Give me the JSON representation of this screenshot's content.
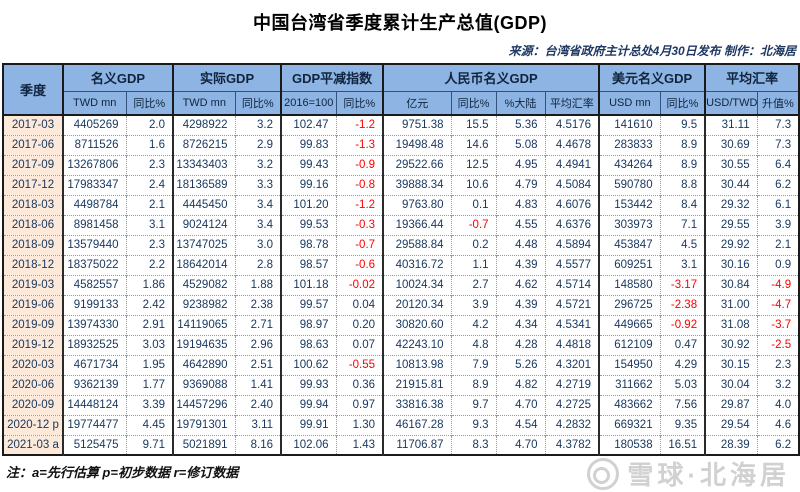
{
  "title": "中国台湾省季度累计生产总值(GDP)",
  "source": "来源：台湾省政府主计总处4月30日发布  制作：北海居",
  "footnote": "注：a=先行估算 p=初步数据 r=修订数据",
  "watermark_text": "雪球·北海居",
  "colors": {
    "header_bg": "#8DB4E2",
    "quarter_bg": "#FDE9D9",
    "data_text": "#17375E",
    "negative_text": "#FF0000",
    "source_text": "#1F3864",
    "watermark_text": "#c9c9c9"
  },
  "table": {
    "quarter_header": "季度",
    "groups": [
      {
        "label": "名义GDP",
        "sub": [
          "TWD mn",
          "同比%"
        ]
      },
      {
        "label": "实际GDP",
        "sub": [
          "TWD mn",
          "同比%"
        ]
      },
      {
        "label": "GDP平减指数",
        "sub": [
          "2016=100",
          "同比%"
        ]
      },
      {
        "label": "人民币名义GDP",
        "sub": [
          "亿元",
          "同比%",
          "%大陆",
          "平均汇率"
        ]
      },
      {
        "label": "美元名义GDP",
        "sub": [
          "USD mn",
          "同比%"
        ]
      },
      {
        "label": "平均汇率",
        "sub": [
          "USD/TWD",
          "升值%"
        ]
      }
    ],
    "rows": [
      {
        "quarter": "2017-03",
        "values": [
          "4405269",
          "2.0",
          "4298922",
          "3.2",
          "102.47",
          "-1.2",
          "9751.38",
          "15.5",
          "5.36",
          "4.5176",
          "141610",
          "9.5",
          "31.11",
          "7.3"
        ]
      },
      {
        "quarter": "2017-06",
        "values": [
          "8711526",
          "1.6",
          "8726215",
          "2.9",
          "99.83",
          "-1.3",
          "19498.48",
          "14.6",
          "5.08",
          "4.4678",
          "283833",
          "8.9",
          "30.69",
          "7.3"
        ]
      },
      {
        "quarter": "2017-09",
        "values": [
          "13267806",
          "2.3",
          "13343403",
          "3.2",
          "99.43",
          "-0.9",
          "29522.66",
          "12.5",
          "4.95",
          "4.4941",
          "434264",
          "8.9",
          "30.55",
          "6.4"
        ]
      },
      {
        "quarter": "2017-12",
        "values": [
          "17983347",
          "2.4",
          "18136589",
          "3.3",
          "99.16",
          "-0.8",
          "39888.34",
          "10.6",
          "4.79",
          "4.5084",
          "590780",
          "8.8",
          "30.44",
          "6.2"
        ]
      },
      {
        "quarter": "2018-03",
        "values": [
          "4498784",
          "2.1",
          "4445450",
          "3.4",
          "101.20",
          "-1.2",
          "9763.80",
          "0.1",
          "4.83",
          "4.6076",
          "153442",
          "8.4",
          "29.32",
          "6.1"
        ]
      },
      {
        "quarter": "2018-06",
        "values": [
          "8981458",
          "3.1",
          "9024124",
          "3.4",
          "99.53",
          "-0.3",
          "19366.44",
          "-0.7",
          "4.55",
          "4.6376",
          "303973",
          "7.1",
          "29.55",
          "3.9"
        ]
      },
      {
        "quarter": "2018-09",
        "values": [
          "13579440",
          "2.3",
          "13747025",
          "3.0",
          "98.78",
          "-0.7",
          "29588.84",
          "0.2",
          "4.48",
          "4.5894",
          "453847",
          "4.5",
          "29.92",
          "2.1"
        ]
      },
      {
        "quarter": "2018-12",
        "values": [
          "18375022",
          "2.2",
          "18642014",
          "2.8",
          "98.57",
          "-0.6",
          "40316.72",
          "1.1",
          "4.39",
          "4.5577",
          "609251",
          "3.1",
          "30.16",
          "0.9"
        ]
      },
      {
        "quarter": "2019-03",
        "values": [
          "4582557",
          "1.86",
          "4529082",
          "1.88",
          "101.18",
          "-0.02",
          "10024.34",
          "2.7",
          "4.62",
          "4.5714",
          "148580",
          "-3.17",
          "30.84",
          "-4.9"
        ]
      },
      {
        "quarter": "2019-06",
        "values": [
          "9199133",
          "2.42",
          "9238982",
          "2.38",
          "99.57",
          "0.04",
          "20120.34",
          "3.9",
          "4.39",
          "4.5721",
          "296725",
          "-2.38",
          "31.00",
          "-4.7"
        ]
      },
      {
        "quarter": "2019-09",
        "values": [
          "13974330",
          "2.91",
          "14119065",
          "2.71",
          "98.97",
          "0.20",
          "30820.60",
          "4.2",
          "4.34",
          "4.5341",
          "449665",
          "-0.92",
          "31.08",
          "-3.7"
        ]
      },
      {
        "quarter": "2019-12",
        "values": [
          "18932525",
          "3.03",
          "19194635",
          "2.96",
          "98.63",
          "0.07",
          "42243.10",
          "4.8",
          "4.28",
          "4.4818",
          "612109",
          "0.47",
          "30.92",
          "-2.5"
        ]
      },
      {
        "quarter": "2020-03",
        "values": [
          "4671734",
          "1.95",
          "4642890",
          "2.51",
          "100.62",
          "-0.55",
          "10813.98",
          "7.9",
          "5.26",
          "4.3201",
          "154950",
          "4.29",
          "30.15",
          "2.3"
        ]
      },
      {
        "quarter": "2020-06",
        "values": [
          "9362139",
          "1.77",
          "9369088",
          "1.41",
          "99.93",
          "0.36",
          "21915.81",
          "8.9",
          "4.82",
          "4.2719",
          "311662",
          "5.03",
          "30.04",
          "3.2"
        ]
      },
      {
        "quarter": "2020-09",
        "values": [
          "14448124",
          "3.39",
          "14457296",
          "2.40",
          "99.94",
          "0.97",
          "33816.38",
          "9.7",
          "4.70",
          "4.2725",
          "483662",
          "7.56",
          "29.87",
          "4.0"
        ]
      },
      {
        "quarter": "2020-12 p",
        "values": [
          "19774477",
          "4.45",
          "19791301",
          "3.11",
          "99.91",
          "1.30",
          "46167.28",
          "9.3",
          "4.54",
          "4.2832",
          "669321",
          "9.35",
          "29.54",
          "4.6"
        ]
      },
      {
        "quarter": "2021-03 a",
        "values": [
          "5125475",
          "9.71",
          "5021891",
          "8.16",
          "102.06",
          "1.43",
          "11706.87",
          "8.3",
          "4.70",
          "4.3782",
          "180538",
          "16.51",
          "28.39",
          "6.2"
        ]
      }
    ]
  }
}
